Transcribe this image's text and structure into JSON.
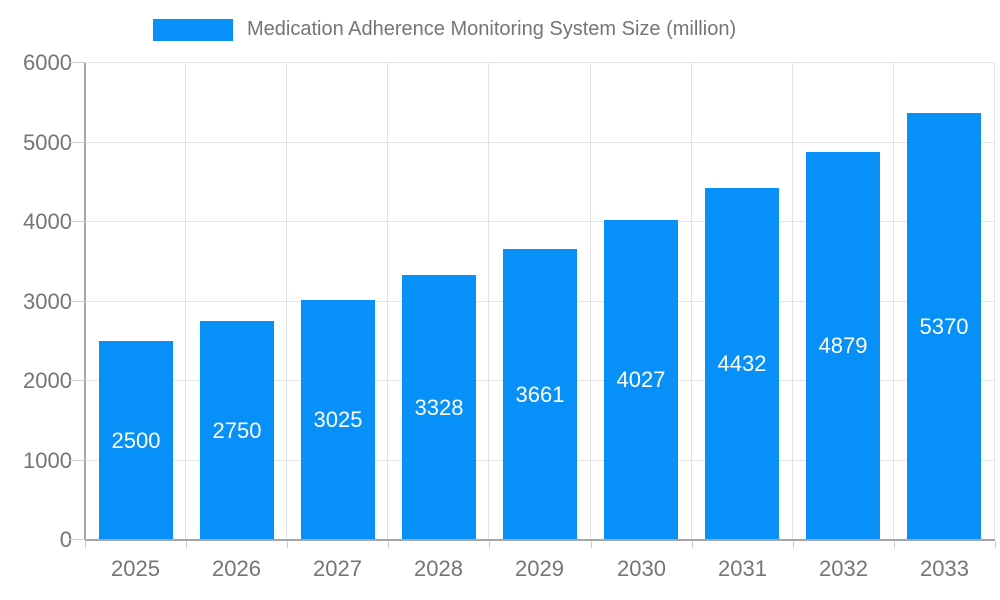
{
  "legend": {
    "label": "Medication Adherence Monitoring System Size (million)",
    "swatch_color": "#0690f8"
  },
  "chart_data": {
    "type": "bar",
    "title": "Medication Adherence Monitoring System Size (million)",
    "categories": [
      "2025",
      "2026",
      "2027",
      "2028",
      "2029",
      "2030",
      "2031",
      "2032",
      "2033"
    ],
    "series": [
      {
        "name": "Medication Adherence Monitoring System Size (million)",
        "values": [
          2500,
          2750,
          3025,
          3328,
          3661,
          4027,
          4432,
          4879,
          5370
        ]
      }
    ],
    "xlabel": "",
    "ylabel": "",
    "ylim": [
      0,
      6000
    ],
    "yticks": [
      0,
      1000,
      2000,
      3000,
      4000,
      5000,
      6000
    ],
    "grid": true,
    "legend_position": "top",
    "value_labels": "centered-white-inside-bars",
    "colors": {
      "bar": "#0690f8",
      "axis_line": "#a6a6a6",
      "gridline": "#e3e3e3",
      "tick": "#cccccc",
      "axis_text": "#757575",
      "value_text": "#ffffff"
    }
  }
}
